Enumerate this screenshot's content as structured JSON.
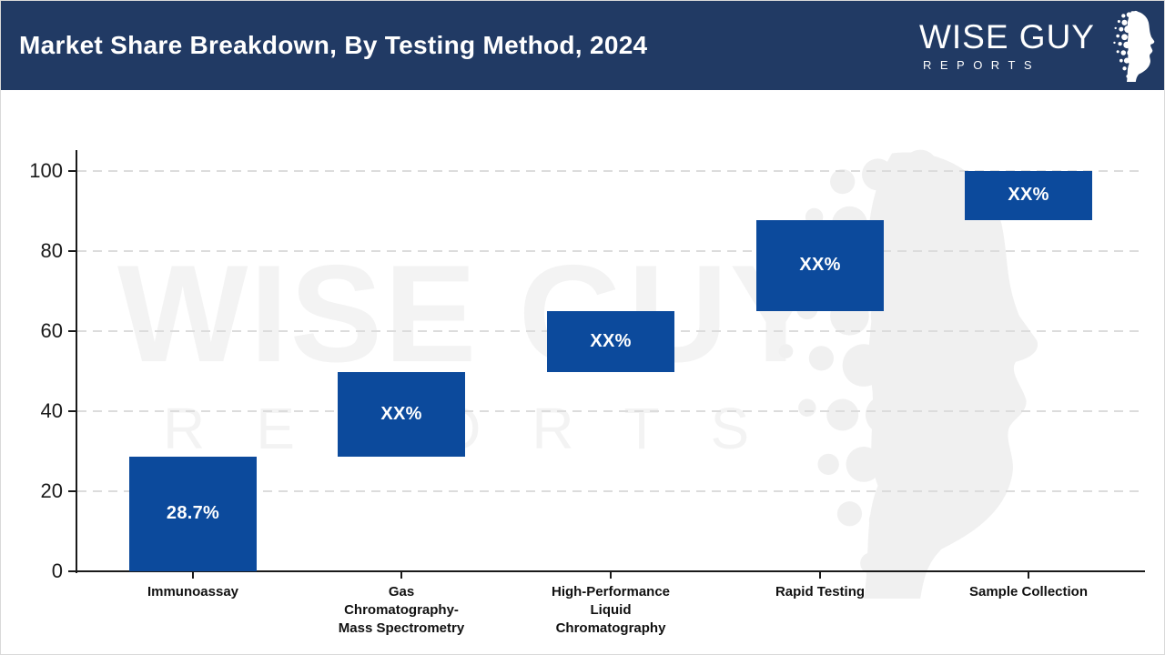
{
  "header": {
    "title": "Market Share Breakdown, By Testing Method, 2024",
    "logo": {
      "line1": "WISE GUY",
      "line2": "REPORTS"
    }
  },
  "watermark": {
    "line1": "WISE GUY",
    "line2": "REPORTS"
  },
  "colors": {
    "header_bg": "#213a64",
    "bar": "#0c4a9c",
    "bar_label": "#ffffff",
    "watermark": "#f3f3f3",
    "axis": "#1a1a1a",
    "gridline": "#dcdcdc"
  },
  "chart_data": {
    "type": "bar",
    "subtype": "waterfall-segments",
    "title": "Market Share Breakdown, By Testing Method, 2024",
    "categories": [
      "Immunoassay",
      "Gas Chromatography-Mass Spectrometry",
      "High-Performance Liquid Chromatography",
      "Rapid Testing",
      "Sample Collection"
    ],
    "category_lines": [
      [
        "Immunoassay"
      ],
      [
        "Gas",
        "Chromatography-",
        "Mass Spectrometry"
      ],
      [
        "High-Performance",
        "Liquid",
        "Chromatography"
      ],
      [
        "Rapid Testing"
      ],
      [
        "Sample Collection"
      ]
    ],
    "segments": [
      {
        "start": 0,
        "end": 28.7,
        "value_label": "28.7%"
      },
      {
        "start": 28.7,
        "end": 49.8,
        "value_label": "XX%"
      },
      {
        "start": 49.8,
        "end": 65.0,
        "value_label": "XX%"
      },
      {
        "start": 65.0,
        "end": 87.8,
        "value_label": "XX%"
      },
      {
        "start": 87.8,
        "end": 100,
        "value_label": "XX%"
      }
    ],
    "ylabel": "",
    "xlabel": "",
    "y_ticks": [
      0,
      20,
      40,
      60,
      80,
      100
    ],
    "ylim": [
      0,
      105
    ],
    "grid": "horizontal-dashed",
    "legend": "none",
    "bar_color": "#0c4a9c"
  }
}
